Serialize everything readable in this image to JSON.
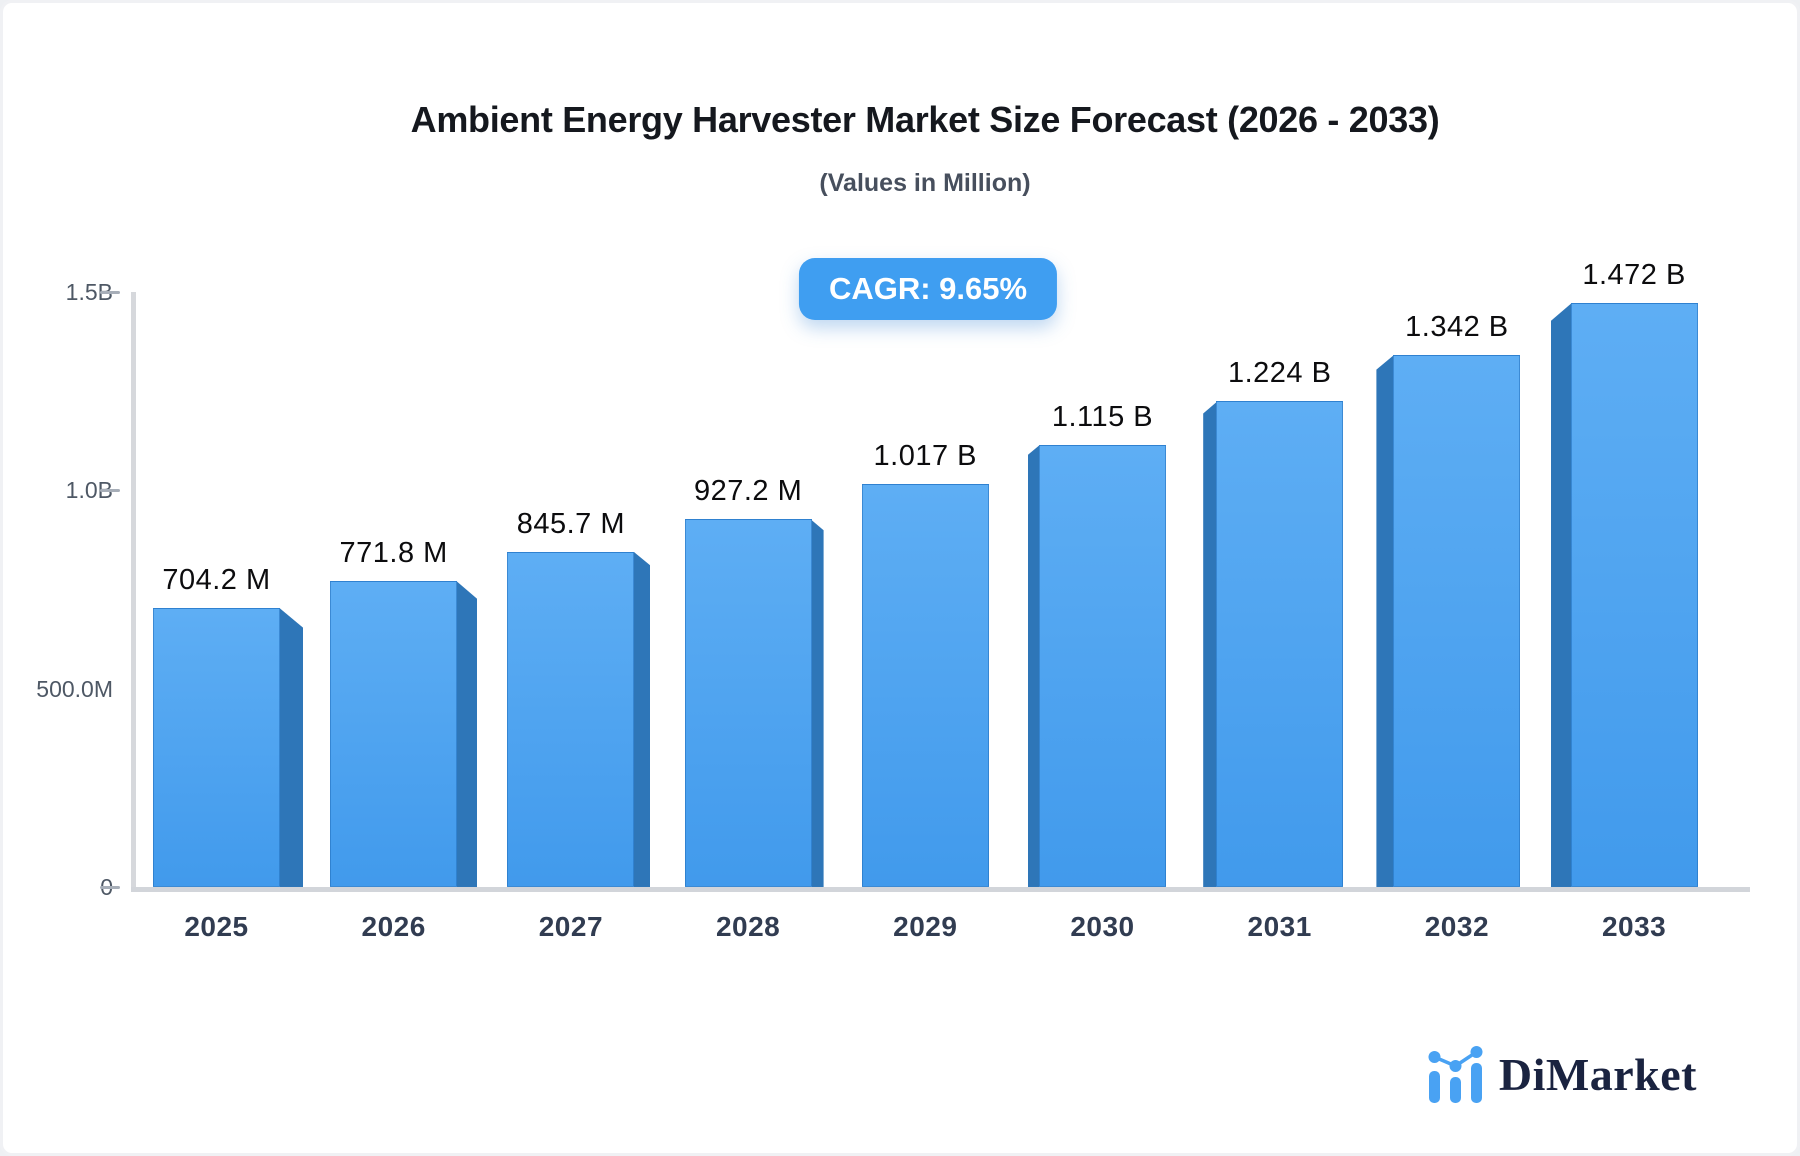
{
  "title": "Ambient Energy Harvester Market Size Forecast (2026 - 2033)",
  "subtitle": "(Values in Million)",
  "badge": {
    "label": "CAGR: 9.65%"
  },
  "logo": {
    "text": "DiMarket",
    "icon": "bar-chart-logo-icon"
  },
  "colors": {
    "accent": "#3f9ef1",
    "bar_face_top": "#5eaef4",
    "bar_face_bottom": "#419aec",
    "bar_side": "#2e76b8",
    "axis": "#d3d5d9",
    "badge_text": "#ffffff",
    "logo_navy": "#1a2340",
    "logo_blue": "#49a2f3"
  },
  "chart_data": {
    "type": "bar",
    "title": "Ambient Energy Harvester Market Size Forecast (2026 - 2033)",
    "subtitle": "(Values in Million)",
    "unit": "Million",
    "categories": [
      "2025",
      "2026",
      "2027",
      "2028",
      "2029",
      "2030",
      "2031",
      "2032",
      "2033"
    ],
    "values": [
      704.2,
      771.8,
      845.7,
      927.2,
      1017,
      1115,
      1224,
      1342,
      1472
    ],
    "value_labels": [
      "704.2 M",
      "771.8 M",
      "845.7 M",
      "927.2 M",
      "1.017 B",
      "1.115 B",
      "1.224 B",
      "1.342 B",
      "1.472 B"
    ],
    "cagr": "9.65%",
    "xlabel": "",
    "ylabel": "",
    "ylim": [
      0,
      1500
    ],
    "grid": false,
    "legend": "none",
    "effect": "3d-perspective-bars",
    "y_axis_ticks": [
      {
        "label": "0",
        "value": 0,
        "dash": true
      },
      {
        "label": "500.0M",
        "value": 500,
        "dash": false
      },
      {
        "label": "1.0B",
        "value": 1000,
        "dash": true
      },
      {
        "label": "1.5B",
        "value": 1500,
        "dash": true
      }
    ]
  }
}
